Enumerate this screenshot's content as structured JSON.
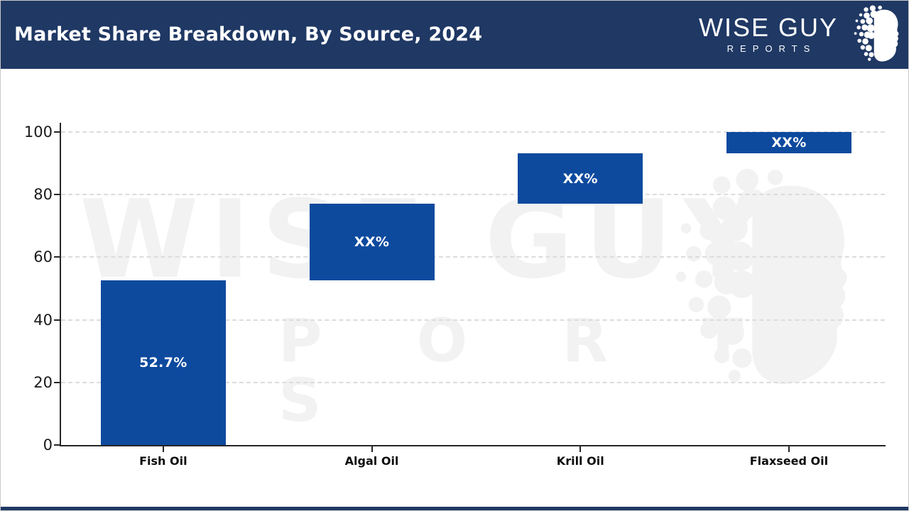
{
  "header": {
    "title": "Market Share Breakdown, By Source, 2024",
    "logo_line1": "WISE GUY",
    "logo_line2": "REPORTS",
    "bg_color": "#1f3864"
  },
  "watermark": {
    "line1": "WISE GUY",
    "line2": "P O R T S",
    "color": "#f2f2f2"
  },
  "chart_data": {
    "type": "bar",
    "subtype": "waterfall",
    "title": "Market Share Breakdown, By Source, 2024",
    "categories": [
      "Fish Oil",
      "Algal Oil",
      "Krill Oil",
      "Flaxseed Oil"
    ],
    "segments": [
      {
        "category": "Fish Oil",
        "start": 0,
        "end": 52.7,
        "label": "52.7%"
      },
      {
        "category": "Algal Oil",
        "start": 52.7,
        "end": 77,
        "label": "XX%"
      },
      {
        "category": "Krill Oil",
        "start": 77,
        "end": 93.2,
        "label": "XX%"
      },
      {
        "category": "Flaxseed Oil",
        "start": 93.2,
        "end": 100,
        "label": "XX%"
      }
    ],
    "y_ticks": [
      0,
      20,
      40,
      60,
      80,
      100
    ],
    "ylim": [
      0,
      105
    ],
    "xlabel": "",
    "ylabel": "",
    "legend": "none",
    "grid": "horizontal-dashed",
    "bar_color": "#0d4a9e",
    "axis_color": "#262626",
    "grid_color": "#dcdcdc",
    "tick_label_color": "#1a1a1a",
    "bar_label_color": "#ffffff"
  }
}
